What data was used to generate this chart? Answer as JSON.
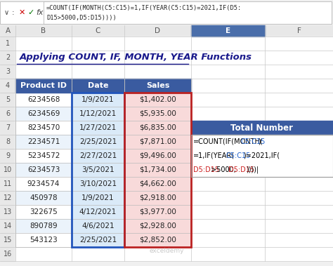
{
  "title": "Applying COUNT, IF, MONTH, YEAR Functions",
  "formula_line1": "=COUNT(IF(MONTH(C5:C15)=1,IF(YEAR(C5:C15)=2021,IF(D5:",
  "formula_line2": "D15>5000,D5:D15))))",
  "col_headers": [
    "Product ID",
    "Date",
    "Sales"
  ],
  "rows": [
    [
      "6234568",
      "1/9/2021",
      "$1,402.00"
    ],
    [
      "6234569",
      "1/12/2021",
      "$5,935.00"
    ],
    [
      "8234570",
      "1/27/2021",
      "$6,835.00"
    ],
    [
      "2234571",
      "2/25/2021",
      "$7,871.00"
    ],
    [
      "5234572",
      "2/27/2021",
      "$9,496.00"
    ],
    [
      "6234573",
      "3/5/2021",
      "$1,734.00"
    ],
    [
      "9234574",
      "3/10/2021",
      "$4,662.00"
    ],
    [
      "450978",
      "1/9/2021",
      "$2,918.00"
    ],
    [
      "322675",
      "4/12/2021",
      "$3,977.00"
    ],
    [
      "890789",
      "4/6/2021",
      "$2,928.00"
    ],
    [
      "543123",
      "2/25/2021",
      "$2,852.00"
    ]
  ],
  "header_bg": "#3A5BA0",
  "header_fg": "#FFFFFF",
  "row_bg_even": "#FFFFFF",
  "row_bg_odd": "#EBF3FB",
  "cell_border": "#BBBBBB",
  "sales_bg": "#F8DADA",
  "date_bg": "#DAEAF8",
  "total_hdr_bg": "#3A5BA0",
  "total_hdr_fg": "#FFFFFF",
  "total_hdr_label": "Total Number",
  "formula_bg": "#FFFFFF",
  "formula_black": "#000000",
  "formula_blue": "#1F60CC",
  "formula_red": "#CC2020",
  "bg_color": "#F0F0F0",
  "col_hdr_bg": "#E8E8E8",
  "row_num_bg": "#E8E8E8",
  "grid_color": "#C8C8C8",
  "title_color": "#1A1A8C",
  "title_underline_color": "#1A1A8C",
  "watermark": "exceldemy",
  "formula_bar_bg": "#F0F0F0",
  "formula_box_bg": "#FFFFFF",
  "col_E_hdr_bg": "#4A6EAA"
}
